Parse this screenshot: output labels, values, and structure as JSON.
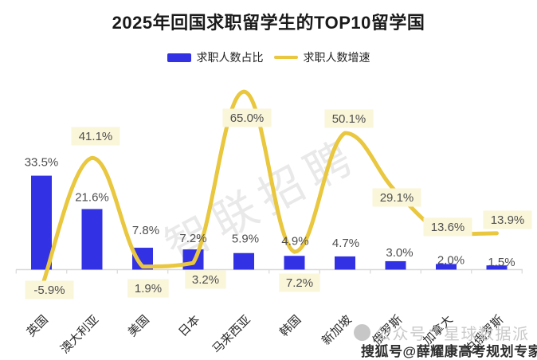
{
  "title": "2025年回国求职留学生的TOP10留学国",
  "legend": {
    "bar_label": "求职人数占比",
    "line_label": "求职人数增速"
  },
  "colors": {
    "bar": "#3231e3",
    "line": "#e9c73e",
    "line_label_bg": "#faf6da",
    "label_text": "#4f4f4f",
    "axis": "#d9d9d9",
    "x_label": "#2b2b2b"
  },
  "watermarks": {
    "center": "智联招聘",
    "bottom_light": "公众号：星球数据派",
    "bottom_dark": "搜狐号@薛耀康高考规划专家"
  },
  "chart_data": {
    "type": "bar",
    "subtype": "combo-bar-line",
    "title": "2025年回国求职留学生的TOP10留学国",
    "categories": [
      "英国",
      "澳大利亚",
      "美国",
      "日本",
      "马来西亚",
      "韩国",
      "新加坡",
      "俄罗斯",
      "加拿大",
      "白俄罗斯"
    ],
    "series": [
      {
        "name": "求职人数占比",
        "type": "bar",
        "unit": "%",
        "values": [
          33.5,
          21.6,
          7.8,
          7.2,
          5.9,
          4.9,
          4.7,
          3.0,
          2.0,
          1.5
        ],
        "labels": [
          "33.5%",
          "21.6%",
          "7.8%",
          "7.2%",
          "5.9%",
          "4.9%",
          "4.7%",
          "3.0%",
          "2.0%",
          "1.5%"
        ]
      },
      {
        "name": "求职人数增速",
        "type": "line",
        "unit": "%",
        "values": [
          -5.9,
          41.1,
          1.9,
          3.2,
          65.0,
          7.2,
          50.1,
          29.1,
          13.6,
          13.9
        ],
        "labels": [
          "-5.9%",
          "41.1%",
          "1.9%",
          "3.2%",
          "65.0%",
          "7.2%",
          "50.1%",
          "29.1%",
          "13.6%",
          "13.9%"
        ]
      }
    ],
    "xlabel": "",
    "ylabel": "",
    "grid": false,
    "legend_position": "top",
    "x_tick_rotation_deg": -45
  }
}
